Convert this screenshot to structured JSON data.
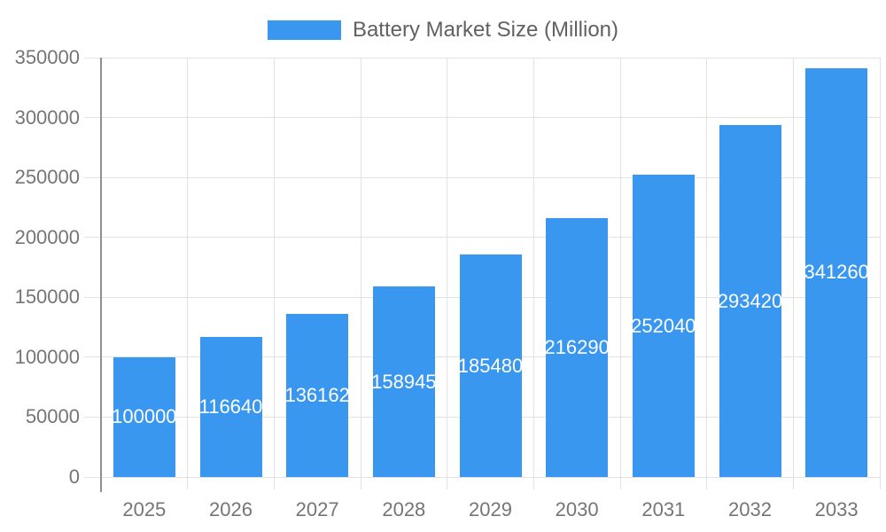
{
  "legend": {
    "label": "Battery Market Size (Million)",
    "swatch_color": "#3997EF"
  },
  "chart_data": {
    "type": "bar",
    "title": "Battery Market Size (Million)",
    "series_name": "Battery Market Size (Million)",
    "categories": [
      "2025",
      "2026",
      "2027",
      "2028",
      "2029",
      "2030",
      "2031",
      "2032",
      "2033"
    ],
    "values": [
      100000,
      116640,
      136162,
      158945,
      185480,
      216290,
      252040,
      293420,
      341260
    ],
    "value_labels": [
      "100000",
      "116640",
      "136162",
      "158945",
      "185480",
      "216290",
      "252040",
      "293420",
      "341260"
    ],
    "xlabel": "",
    "ylabel": "",
    "ylim": [
      0,
      350000
    ],
    "y_ticks": [
      0,
      50000,
      100000,
      150000,
      200000,
      250000,
      300000,
      350000
    ],
    "y_tick_labels": [
      "0",
      "50000",
      "100000",
      "150000",
      "200000",
      "250000",
      "300000",
      "350000"
    ],
    "grid": true,
    "legend_position": "top",
    "colors": {
      "bar": "#3997EF",
      "value_label": "#ffffff",
      "axis_label": "#757575",
      "legend_text": "#616161",
      "gridline": "#e2e2e2",
      "axis_line": "#909090"
    }
  }
}
